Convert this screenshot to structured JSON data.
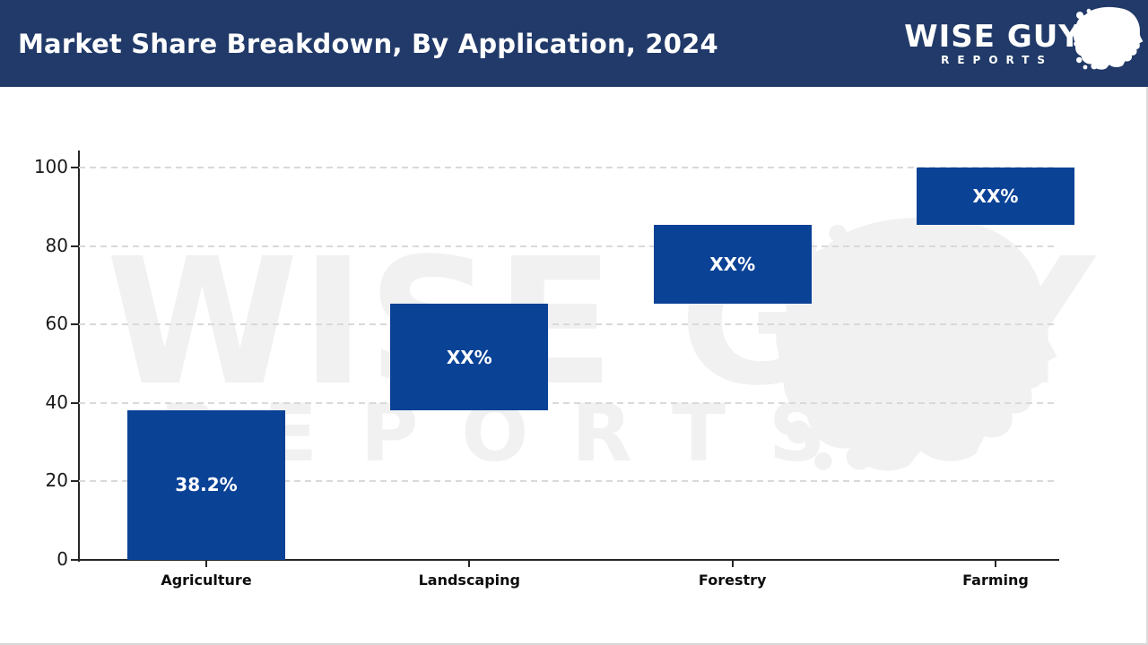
{
  "header": {
    "title": "Market Share Breakdown, By Application, 2024",
    "logo": {
      "line1": "WISE GUY",
      "line2": "REPORTS"
    }
  },
  "watermark": {
    "line1": "WISE GUY",
    "line2": "REPORTS"
  },
  "chart_data": {
    "type": "bar",
    "subtype": "floating-waterfall",
    "title": "Market Share Breakdown, By Application, 2024",
    "categories": [
      "Agriculture",
      "Landscaping",
      "Forestry",
      "Farming"
    ],
    "series": [
      {
        "name": "Market share (%)",
        "segments": [
          {
            "category": "Agriculture",
            "start": 0,
            "end": 38.2,
            "label": "38.2%"
          },
          {
            "category": "Landscaping",
            "start": 38.2,
            "end": 65.2,
            "label": "XX%"
          },
          {
            "category": "Forestry",
            "start": 65.2,
            "end": 85.5,
            "label": "XX%"
          },
          {
            "category": "Farming",
            "start": 85.5,
            "end": 100,
            "label": "XX%"
          }
        ]
      }
    ],
    "xlabel": "",
    "ylabel": "",
    "ylim": [
      0,
      100
    ],
    "yticks": [
      0,
      20,
      40,
      60,
      80,
      100
    ],
    "grid": "horizontal-dashed",
    "legend": "none",
    "bar_color": "#0a4296",
    "bar_label_color": "#ffffff"
  },
  "colors": {
    "header_bg": "#213a69",
    "bar": "#0a4296",
    "grid": "#d9d9d9",
    "axis": "#262626",
    "watermark": "#f1f1f2",
    "title_text": "#ffffff"
  }
}
